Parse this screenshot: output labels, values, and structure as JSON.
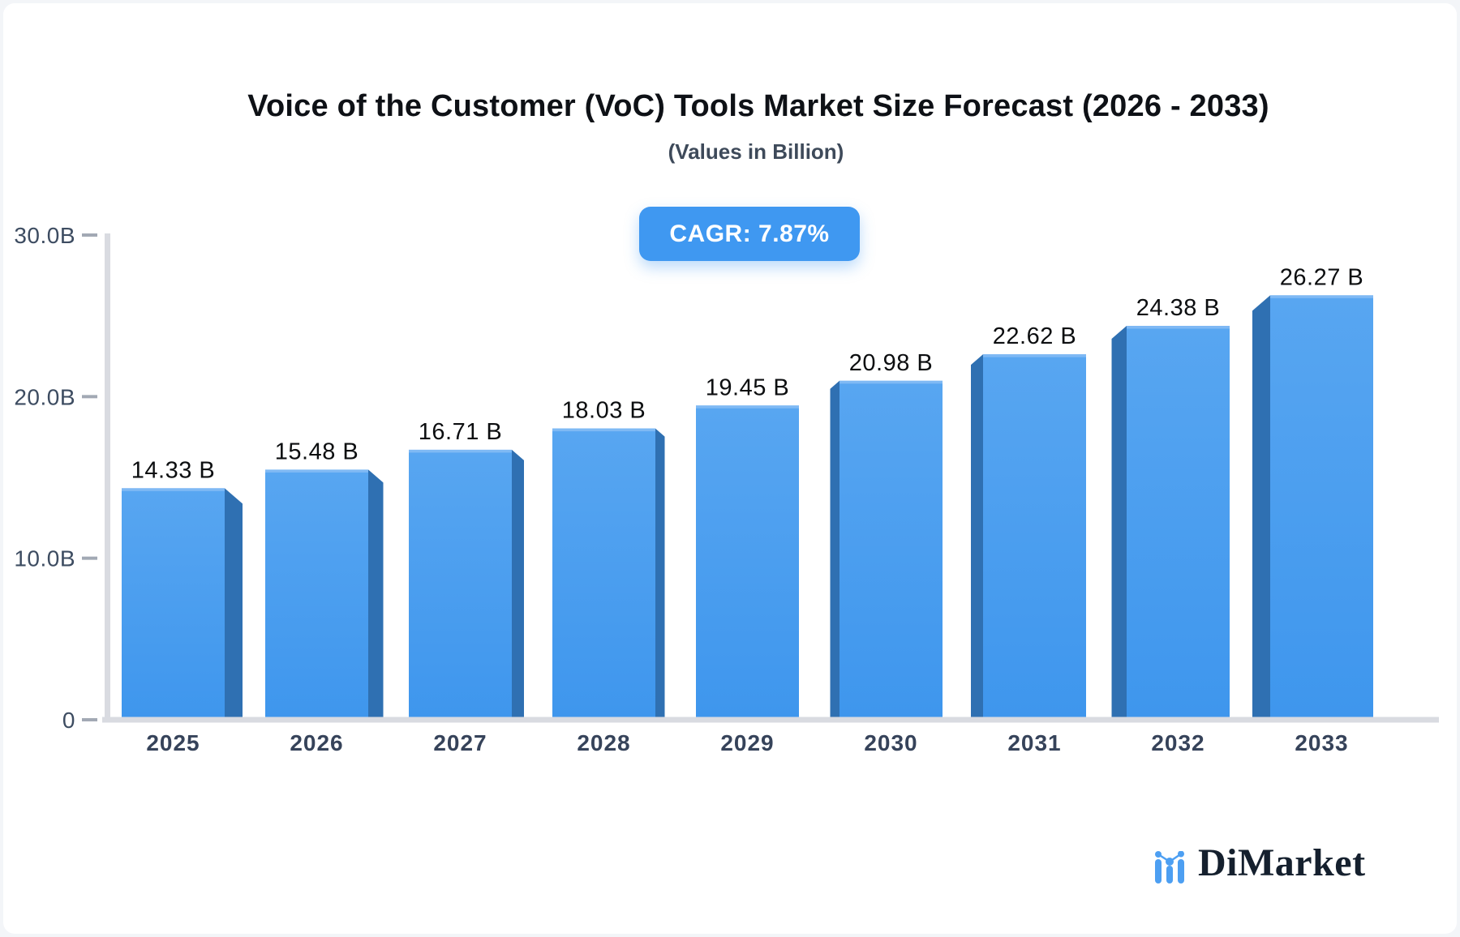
{
  "title": "Voice of the Customer (VoC) Tools Market Size Forecast (2026 - 2033)",
  "subtitle": "(Values in Billion)",
  "badge": {
    "label": "CAGR: 7.87%"
  },
  "brand": {
    "name": "DiMarket",
    "icon": "bar-chart-logo-icon"
  },
  "colors": {
    "badge_bg": "#3f98f1",
    "bar_front_top": "#58a6f1",
    "bar_front_bottom": "#3e96ed",
    "bar_top_highlight": "#7fb9f4",
    "bar_side": "#2f70b2",
    "axis_line": "#d9dbe1",
    "tick_dash": "#a2a9b4",
    "y_label": "#3d4c61",
    "x_label": "#36435a",
    "value_label": "#0c0e10",
    "logo_blue": "#4d9ff2",
    "logo_text": "#15202e"
  },
  "chart_data": {
    "type": "bar",
    "title": "Voice of the Customer (VoC) Tools Market Size Forecast (2026 - 2033)",
    "subtitle": "(Values in Billion)",
    "categories": [
      "2025",
      "2026",
      "2027",
      "2028",
      "2029",
      "2030",
      "2031",
      "2032",
      "2033"
    ],
    "values": [
      14.33,
      15.48,
      16.71,
      18.03,
      19.45,
      20.98,
      22.62,
      24.38,
      26.27
    ],
    "value_labels": [
      "14.33 B",
      "15.48 B",
      "16.71 B",
      "18.03 B",
      "19.45 B",
      "20.98 B",
      "22.62 B",
      "24.38 B",
      "26.27 B"
    ],
    "unit": "Billion",
    "cagr": "7.87%",
    "ylim": [
      0,
      30
    ],
    "y_ticks": [
      0,
      10,
      20,
      30
    ],
    "y_tick_labels": [
      "0",
      "10.0B",
      "20.0B",
      "30.0B"
    ],
    "grid": false,
    "legend": "none",
    "style": "3d-extruded-bars"
  }
}
